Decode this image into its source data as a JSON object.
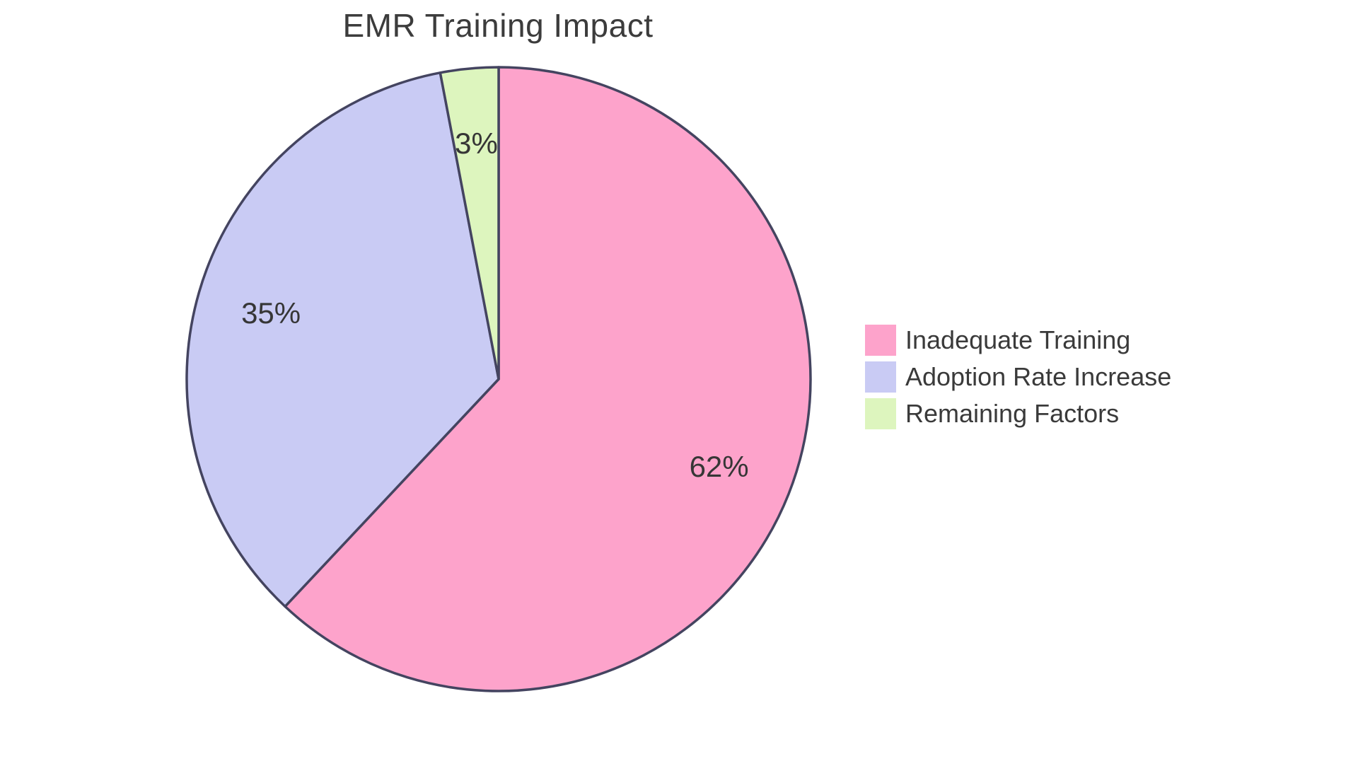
{
  "chart_data": {
    "type": "pie",
    "title": "EMR Training Impact",
    "slices": [
      {
        "label": "Inadequate Training",
        "value": 62,
        "pct_label": "62%",
        "color": "#FDA3CB"
      },
      {
        "label": "Adoption Rate Increase",
        "value": 35,
        "pct_label": "35%",
        "color": "#C9CBF4"
      },
      {
        "label": "Remaining Factors",
        "value": 3,
        "pct_label": "3%",
        "color": "#DDF5BE"
      }
    ],
    "total": 100,
    "start_angle_deg": 0,
    "direction": "clockwise",
    "slice_stroke_color": "#444460",
    "title_color": "#3C3C3C",
    "slice_label_color": "#363636",
    "legend": {
      "position": "right",
      "text_color": "#3A3A3A"
    }
  }
}
